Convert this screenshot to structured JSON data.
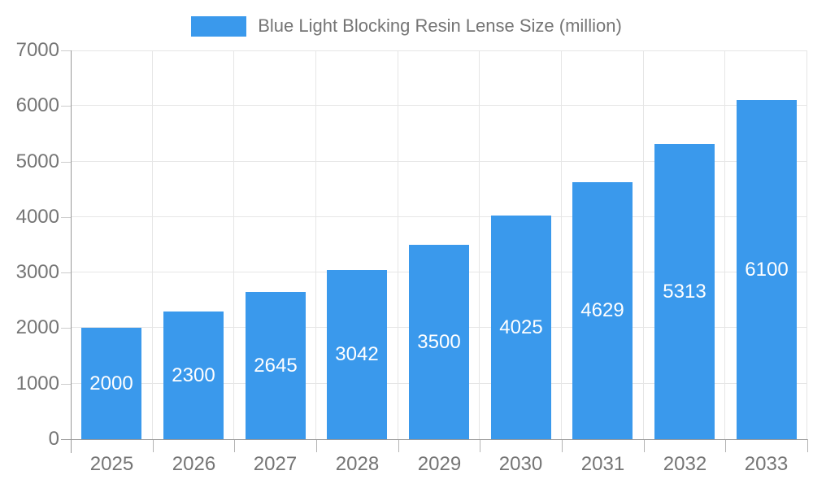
{
  "chart_data": {
    "type": "bar",
    "title": "",
    "categories": [
      "2025",
      "2026",
      "2027",
      "2028",
      "2029",
      "2030",
      "2031",
      "2032",
      "2033"
    ],
    "series": [
      {
        "name": "Blue Light Blocking Resin Lense Size (million)",
        "values": [
          2000,
          2300,
          2645,
          3042,
          3500,
          4025,
          4629,
          5313,
          6100
        ]
      }
    ],
    "xlabel": "",
    "ylabel": "",
    "ylim": [
      0,
      7000
    ],
    "yticks": [
      0,
      1000,
      2000,
      3000,
      4000,
      5000,
      6000,
      7000
    ],
    "grid": true,
    "legend_position": "top",
    "bar_value_labels_inside": true,
    "colors": {
      "bar": "#3A99EC",
      "grid": "#E6E6E6",
      "axis": "#999999",
      "y_tick": "#CCCCCC",
      "x_tick": "#B3B3B3",
      "text": "#757575",
      "bar_label": "#FFFFFF",
      "background": "#FFFFFF"
    }
  }
}
